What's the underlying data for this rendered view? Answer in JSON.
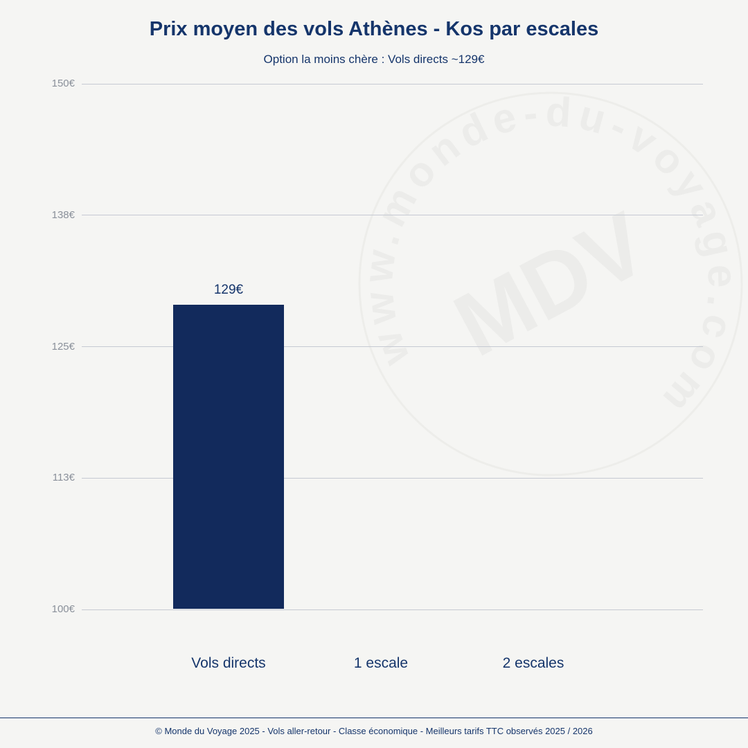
{
  "colors": {
    "background": "#f5f5f3",
    "accent": "#15356b",
    "bar": "#122a5c",
    "gridline": "#c5c9d2",
    "tick_label": "#8a909a",
    "watermark": "#ececea"
  },
  "header": {
    "title": "Prix moyen des vols Athènes - Kos par escales",
    "subtitle": "Option la moins chère : Vols directs ~129€"
  },
  "chart_data": {
    "type": "bar",
    "title": "Prix moyen des vols Athènes - Kos par escales",
    "subtitle": "Option la moins chère : Vols directs ~129€",
    "categories": [
      "Vols directs",
      "1 escale",
      "2 escales"
    ],
    "values": [
      129,
      null,
      null
    ],
    "bar_value_labels": [
      "129€",
      "",
      ""
    ],
    "xlabel": "",
    "ylabel": "",
    "ylim": [
      100,
      150
    ],
    "ytick_values": [
      100,
      113,
      125,
      138,
      150
    ],
    "ytick_labels": [
      "100€",
      "113€",
      "125€",
      "138€",
      "150€"
    ],
    "grid": true,
    "legend": false,
    "bar_color": "#122a5c"
  },
  "watermark": {
    "ring_text": "www.monde-du-voyage.com",
    "center_text": "MDV"
  },
  "footer": {
    "text": "© Monde du Voyage 2025 - Vols aller-retour - Classe économique - Meilleurs tarifs TTC observés 2025 / 2026"
  }
}
